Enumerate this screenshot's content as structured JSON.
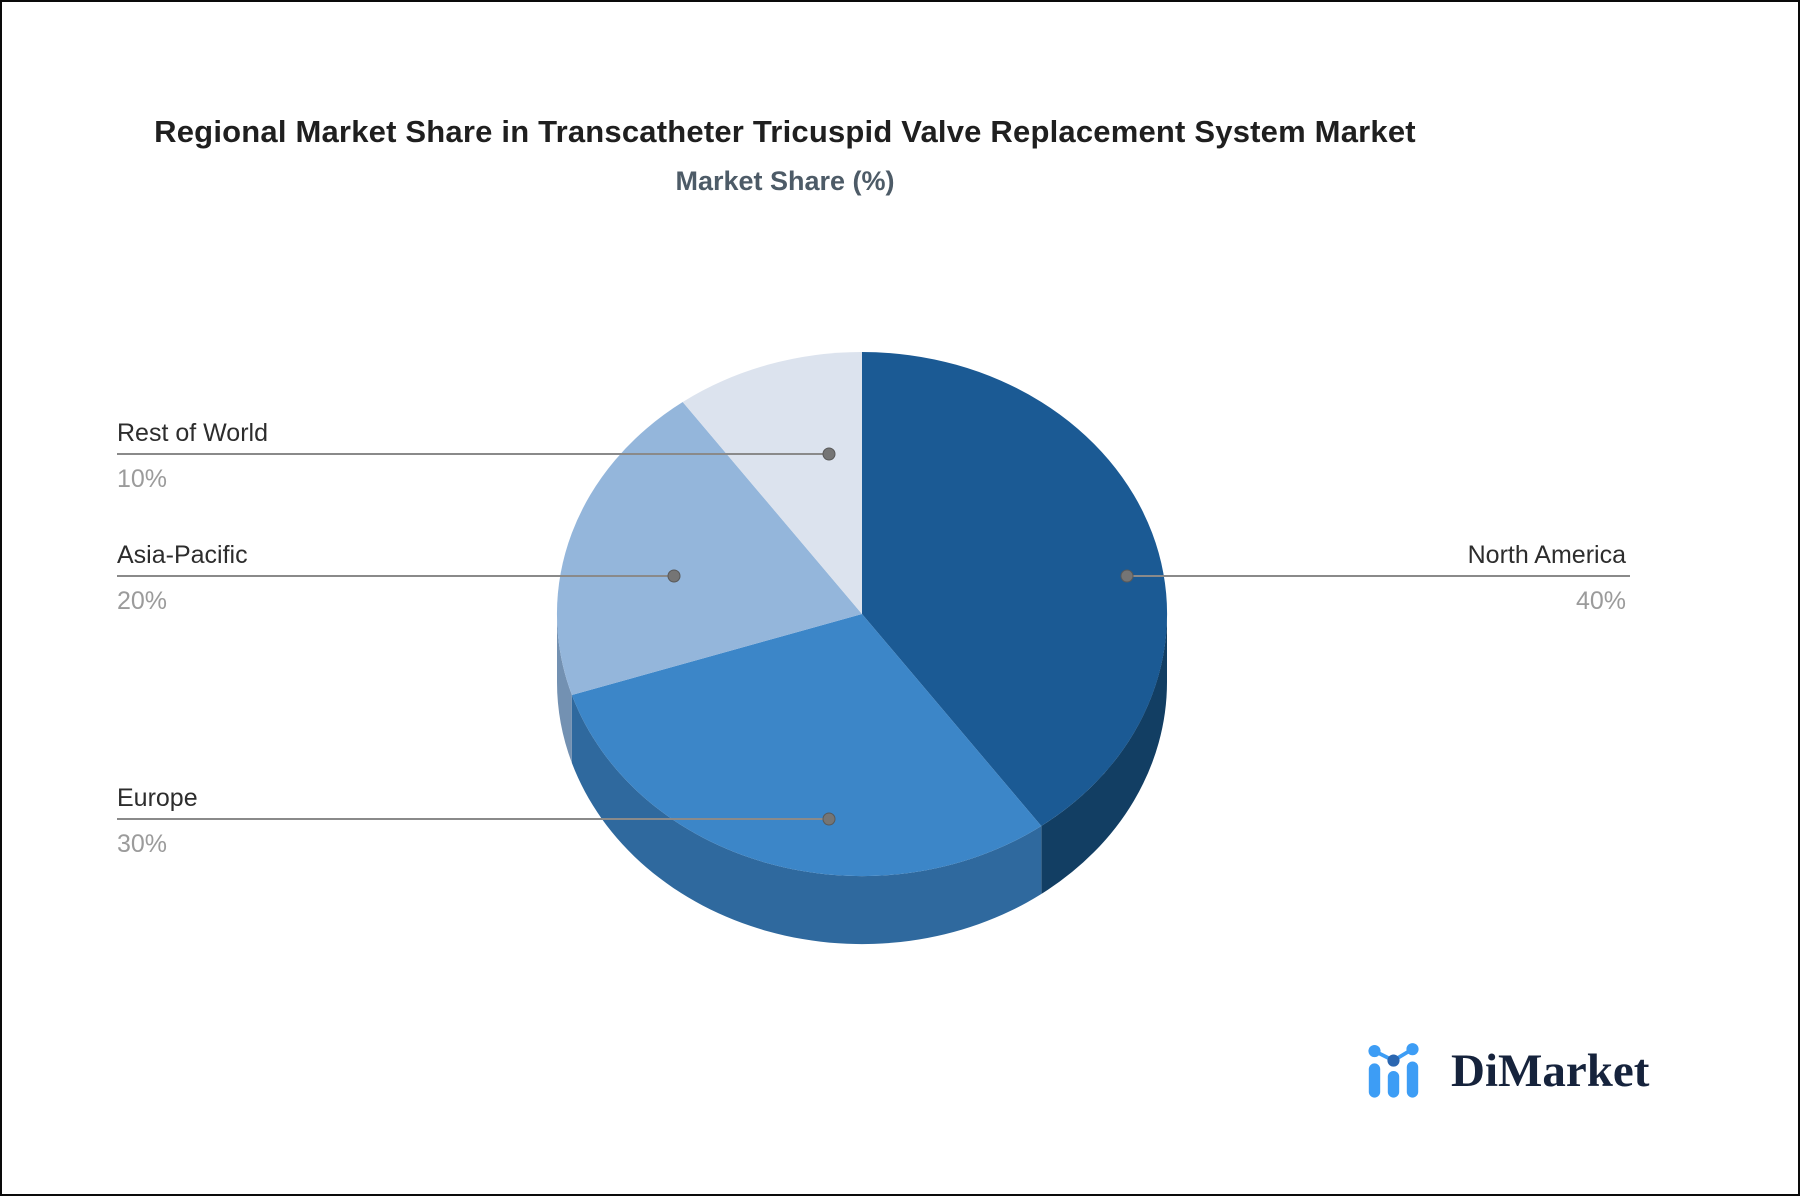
{
  "chart_data": {
    "type": "pie",
    "style": "3d",
    "title": "Regional Market Share in Transcatheter Tricuspid Valve Replacement System Market",
    "subtitle": "Market Share (%)",
    "unit": "%",
    "total": 100,
    "start": "top",
    "direction": "clockwise",
    "legend_position": "none",
    "slices": [
      {
        "label": "North America",
        "value": 40,
        "display": "40%",
        "color": "#1b5a94",
        "side_color": "#123e63"
      },
      {
        "label": "Europe",
        "value": 30,
        "display": "30%",
        "color": "#3c86c8",
        "side_color": "#2f699e"
      },
      {
        "label": "Asia-Pacific",
        "value": 20,
        "display": "20%",
        "color": "#94b6db",
        "side_color": "#7391b2"
      },
      {
        "label": "Rest of World",
        "value": 10,
        "display": "10%",
        "color": "#dce3ee",
        "side_color": "#b0bdd2"
      }
    ],
    "connector_color": "#8a8a8a",
    "connector_dot_color": "#757575",
    "label_color": "#2d2d2d",
    "value_color": "#9b9b9b"
  },
  "branding": {
    "logo_text": "DiMarket",
    "logo_icon": "mini-bar-chart-icon",
    "wordmark_color": "#16233c",
    "icon_color": "#3d9df5",
    "icon_dot_accent": "#2b66b0"
  }
}
